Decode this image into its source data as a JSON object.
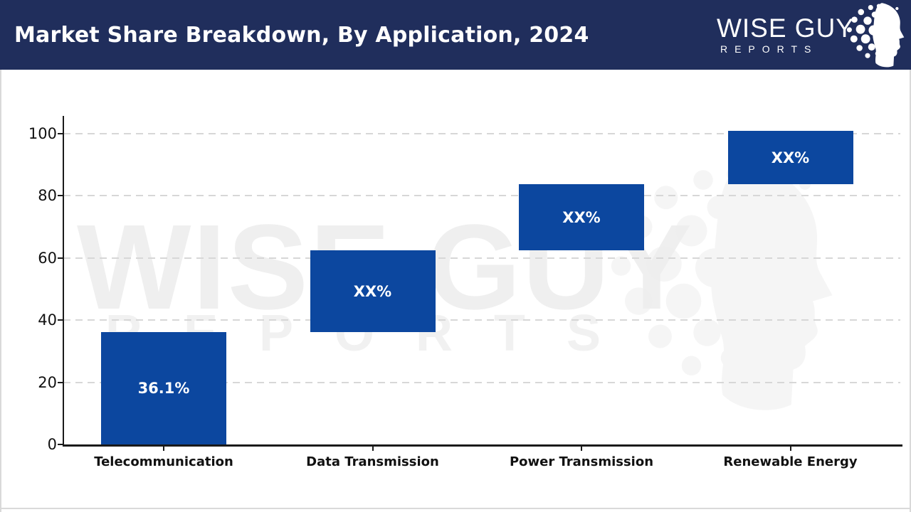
{
  "header": {
    "title": "Market Share Breakdown, By Application, 2024",
    "logo": {
      "brand": "WISE GUY",
      "sub": "REPORTS"
    }
  },
  "watermark": {
    "line1": "WISE GUY",
    "line2": "REPORTS"
  },
  "colors": {
    "header_bg": "#202e5c",
    "bar": "#0c479f",
    "bar_label": "#ffffff",
    "grid": "#d7d7d7",
    "axis": "#1a1a1a",
    "tick_label": "#111111",
    "watermark": "#efefef",
    "frame_border": "#d9d9d9"
  },
  "chart_data": {
    "type": "bar",
    "variant": "floating-segment-waterfall",
    "title": "Market Share Breakdown, By Application, 2024",
    "categories": [
      "Telecommunication",
      "Data Transmission",
      "Power Transmission",
      "Renewable Energy"
    ],
    "series": [
      {
        "name": "Market share by application (%)",
        "segments": [
          {
            "category": "Telecommunication",
            "from": 0,
            "to": 36.1,
            "label": "36.1%"
          },
          {
            "category": "Data Transmission",
            "from": 36.1,
            "to": 62.3,
            "label": "XX%"
          },
          {
            "category": "Power Transmission",
            "from": 62.3,
            "to": 83.6,
            "label": "XX%"
          },
          {
            "category": "Renewable Energy",
            "from": 83.6,
            "to": 100.8,
            "label": "XX%"
          }
        ]
      }
    ],
    "xlabel": "",
    "ylabel": "",
    "ylim": [
      0,
      106
    ],
    "yticks": [
      0,
      20,
      40,
      60,
      80,
      100
    ],
    "ytick_labels": [
      "0",
      "20",
      "40",
      "60",
      "80",
      "100"
    ],
    "grid": "horizontal-dashed",
    "legend_position": "none",
    "bar_color": "#0c479f",
    "bar_value_labels": [
      "36.1%",
      "XX%",
      "XX%",
      "XX%"
    ]
  }
}
